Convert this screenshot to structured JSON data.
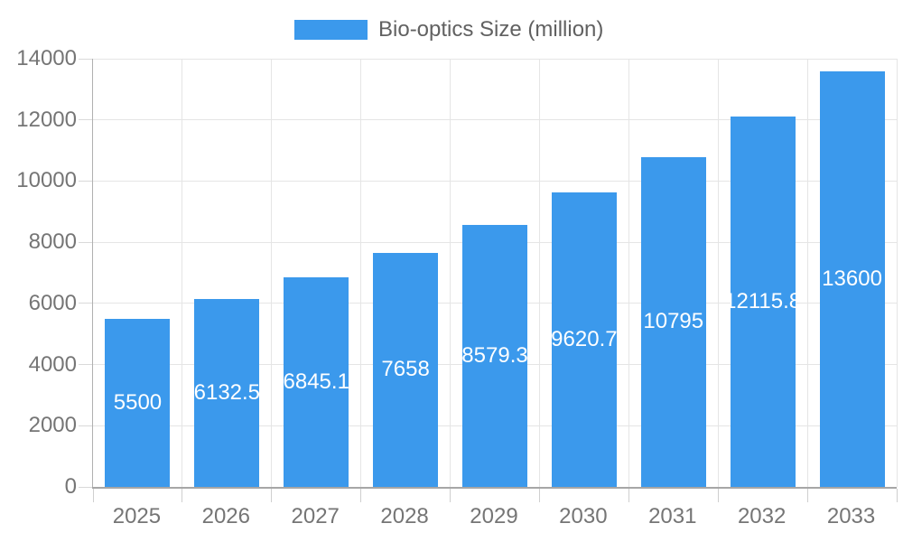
{
  "legend": {
    "label": "Bio-optics Size (million)"
  },
  "colors": {
    "bar": "#3B99EC",
    "bar_label_text": "#FFFFFF",
    "axis_text": "#757575",
    "legend_text": "#616161",
    "gridline": "#E5E5E5",
    "axis_line": "#A6A6A6",
    "background": "#FFFFFF"
  },
  "chart_data": {
    "type": "bar",
    "title": "",
    "xlabel": "",
    "ylabel": "",
    "categories": [
      "2025",
      "2026",
      "2027",
      "2028",
      "2029",
      "2030",
      "2031",
      "2032",
      "2033"
    ],
    "series": [
      {
        "name": "Bio-optics Size (million)",
        "color": "#3B99EC",
        "values": [
          5500,
          6132.5,
          6845.1,
          7658,
          8579.3,
          9620.7,
          10795,
          12115.8,
          13600
        ]
      }
    ],
    "bar_value_labels": [
      "5500",
      "6132.5",
      "6845.1",
      "7658",
      "8579.3",
      "9620.7",
      "10795",
      "12115.8",
      "13600"
    ],
    "ylim": [
      0,
      14000
    ],
    "ytick_interval": 2000,
    "yticks": [
      0,
      2000,
      4000,
      6000,
      8000,
      10000,
      12000,
      14000
    ],
    "grid": true,
    "legend_position": "top-center",
    "value_labels": "centered-in-bar-white"
  }
}
